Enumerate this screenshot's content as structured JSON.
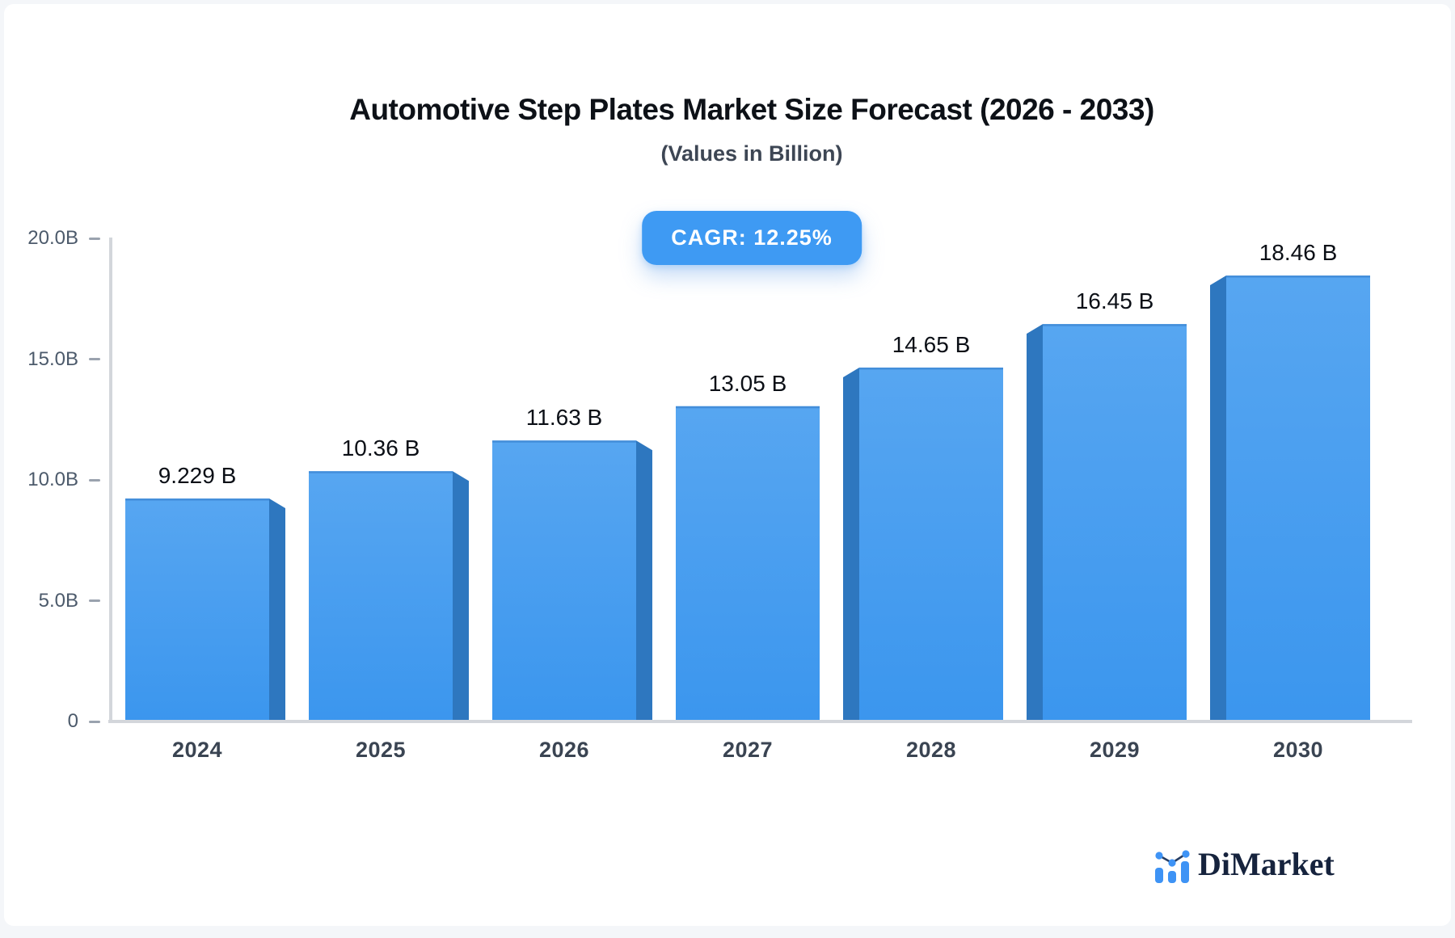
{
  "page": {
    "background": "#f4f6f9",
    "card_background": "#ffffff"
  },
  "header": {
    "title": "Automotive Step Plates Market Size Forecast (2026 - 2033)",
    "subtitle": "(Values in Billion)"
  },
  "badge": {
    "label": "CAGR: 12.25%",
    "background": "#3e9af3",
    "text_color": "#ffffff"
  },
  "chart_data": {
    "type": "bar",
    "title": "Automotive Step Plates Market Size Forecast (2026 - 2033)",
    "subtitle": "(Values in Billion)",
    "cagr_label": "CAGR: 12.25%",
    "categories": [
      "2024",
      "2025",
      "2026",
      "2027",
      "2028",
      "2029",
      "2030"
    ],
    "values": [
      9.229,
      10.36,
      11.63,
      13.05,
      14.65,
      16.45,
      18.46
    ],
    "bar_labels": [
      "9.229 B",
      "10.36 B",
      "11.63 B",
      "13.05 B",
      "14.65 B",
      "16.45 B",
      "18.46 B"
    ],
    "xlabel": "",
    "ylabel": "",
    "ylim": [
      0,
      20
    ],
    "yticks": [
      {
        "v": 0,
        "label": "0"
      },
      {
        "v": 5,
        "label": "5.0B"
      },
      {
        "v": 10,
        "label": "10.0B"
      },
      {
        "v": 15,
        "label": "15.0B"
      },
      {
        "v": 20,
        "label": "20.0B"
      }
    ],
    "grid": false,
    "legend": false,
    "bar_style": "3d-column",
    "colors": {
      "bar_face_top": "#57a6f1",
      "bar_face_bottom": "#3b96ee",
      "bar_top_edge": "#3f8ad6",
      "bar_side": "#2e77bf",
      "axis_line": "#d3d6db",
      "tick": "#9aa2ae",
      "y_label": "#4c5a6b",
      "x_label": "#3a4452",
      "value_label": "#0b0f16"
    }
  },
  "logo": {
    "text": "DiMarket",
    "color": "#16233d",
    "icon": "mini-bar-chart-icon",
    "icon_bar_color": "#3e93f5",
    "icon_line_color": "#273e63"
  }
}
